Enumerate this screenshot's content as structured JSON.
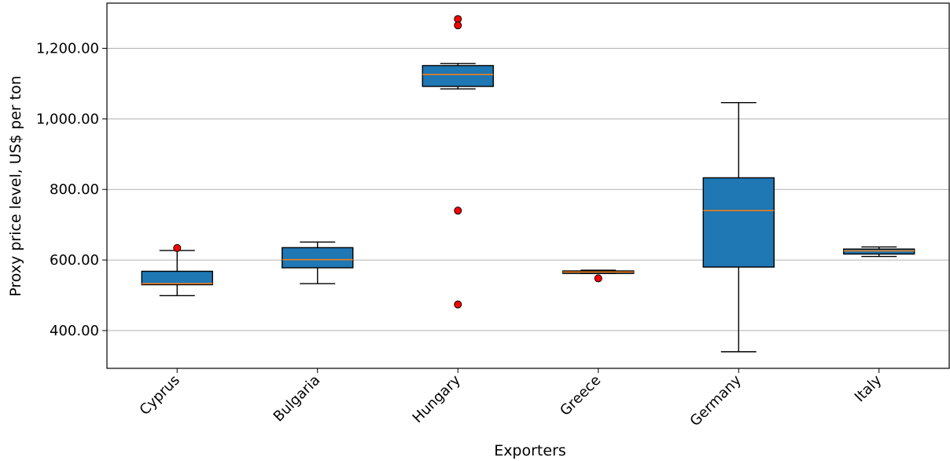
{
  "chart_data": {
    "type": "box",
    "title": "",
    "xlabel": "Exporters",
    "ylabel": "Proxy price level, US$ per ton",
    "ylim": [
      293,
      1328
    ],
    "yticks": [
      400,
      600,
      800,
      1000,
      1200
    ],
    "ytick_labels": [
      "400.00",
      "600.00",
      "800.00",
      "1,000.00",
      "1,200.00"
    ],
    "grid": "horizontal",
    "categories": [
      "Cyprus",
      "Bulgaria",
      "Hungary",
      "Greece",
      "Germany",
      "Italy"
    ],
    "boxes": [
      {
        "label": "Cyprus",
        "whisker_low": 499,
        "q1": 530,
        "median": 533,
        "q3": 568,
        "whisker_high": 627,
        "outliers": [
          634
        ]
      },
      {
        "label": "Bulgaria",
        "whisker_low": 533,
        "q1": 578,
        "median": 601,
        "q3": 635,
        "whisker_high": 651,
        "outliers": []
      },
      {
        "label": "Hungary",
        "whisker_low": 1085,
        "q1": 1092,
        "median": 1126,
        "q3": 1151,
        "whisker_high": 1157,
        "outliers": [
          1283,
          1265,
          740,
          474
        ]
      },
      {
        "label": "Greece",
        "whisker_low": 562,
        "q1": 562,
        "median": 566,
        "q3": 569,
        "whisker_high": 571,
        "outliers": [
          548
        ]
      },
      {
        "label": "Germany",
        "whisker_low": 340,
        "q1": 580,
        "median": 740,
        "q3": 833,
        "whisker_high": 1046,
        "outliers": []
      },
      {
        "label": "Italy",
        "whisker_low": 610,
        "q1": 617,
        "median": 626,
        "q3": 631,
        "whisker_high": 637,
        "outliers": []
      }
    ],
    "colors": {
      "box_fill": "#1f77b4",
      "median": "#ff7f0e",
      "outlier": "#ff0000",
      "grid": "#b0b0b0",
      "axis": "#000000"
    }
  }
}
